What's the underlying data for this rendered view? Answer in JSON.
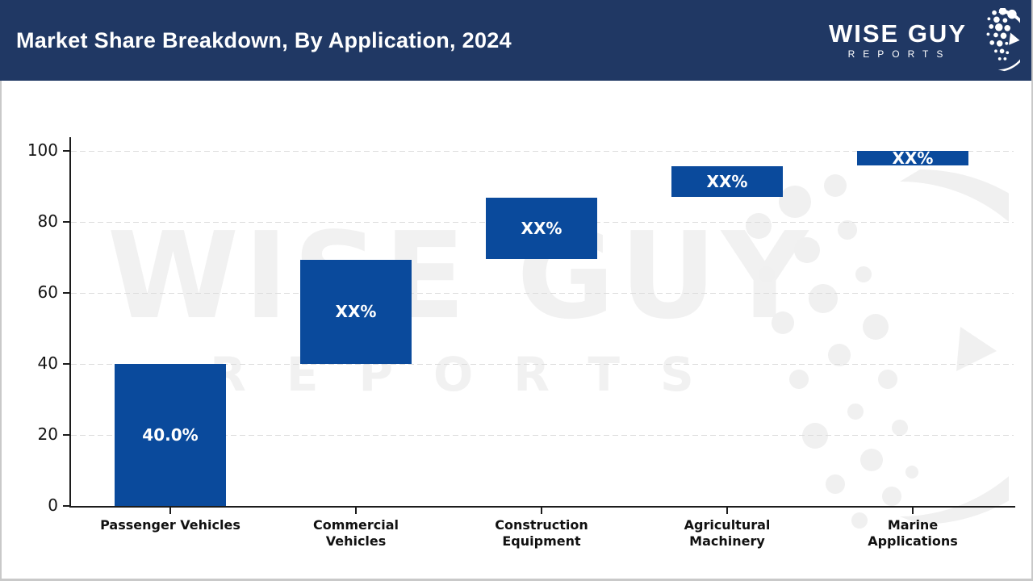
{
  "header": {
    "title": "Market Share Breakdown, By Application, 2024",
    "logo": {
      "name": "WISE GUY",
      "sub": "REPORTS"
    }
  },
  "watermark": {
    "line1": "WISE GUY",
    "line2": "REPORTS"
  },
  "icons": {
    "logo_face": "face-profile-dots-icon",
    "watermark_face": "face-profile-dots-icon"
  },
  "colors": {
    "header_bg": "#203864",
    "bar": "#0a4a9c",
    "value_label": "#ffffff",
    "grid": "#dcdcdc",
    "axis": "#1c1c1c",
    "page_border": "#c9c9c9",
    "watermark": "#f1f1f1"
  },
  "chart_data": {
    "type": "bar",
    "variant": "waterfall",
    "title": "Market Share Breakdown, By Application, 2024",
    "xlabel": "",
    "ylabel": "",
    "ylim": [
      0,
      100
    ],
    "yticks": [
      0,
      20,
      40,
      60,
      80,
      100
    ],
    "grid": true,
    "legend": "none",
    "bar_color": "#0a4a9c",
    "categories": [
      "Passenger Vehicles",
      "Commercial Vehicles",
      "Construction Equipment",
      "Agricultural Machinery",
      "Marine Applications"
    ],
    "category_lines": [
      [
        "Passenger Vehicles"
      ],
      [
        "Commercial",
        "Vehicles"
      ],
      [
        "Construction",
        "Equipment"
      ],
      [
        "Agricultural",
        "Machinery"
      ],
      [
        "Marine",
        "Applications"
      ]
    ],
    "bars": [
      {
        "category": "Passenger Vehicles",
        "start": 0,
        "end": 40.0,
        "value": 40.0,
        "label": "40.0%"
      },
      {
        "category": "Commercial Vehicles",
        "start": 40.0,
        "end": 69.4,
        "value": 29.4,
        "label": "XX%"
      },
      {
        "category": "Construction Equipment",
        "start": 69.5,
        "end": 86.9,
        "value": 17.4,
        "label": "XX%"
      },
      {
        "category": "Agricultural Machinery",
        "start": 87.1,
        "end": 95.7,
        "value": 8.6,
        "label": "XX%"
      },
      {
        "category": "Marine Applications",
        "start": 95.9,
        "end": 100.0,
        "value": 4.1,
        "label": "XX%"
      }
    ]
  }
}
